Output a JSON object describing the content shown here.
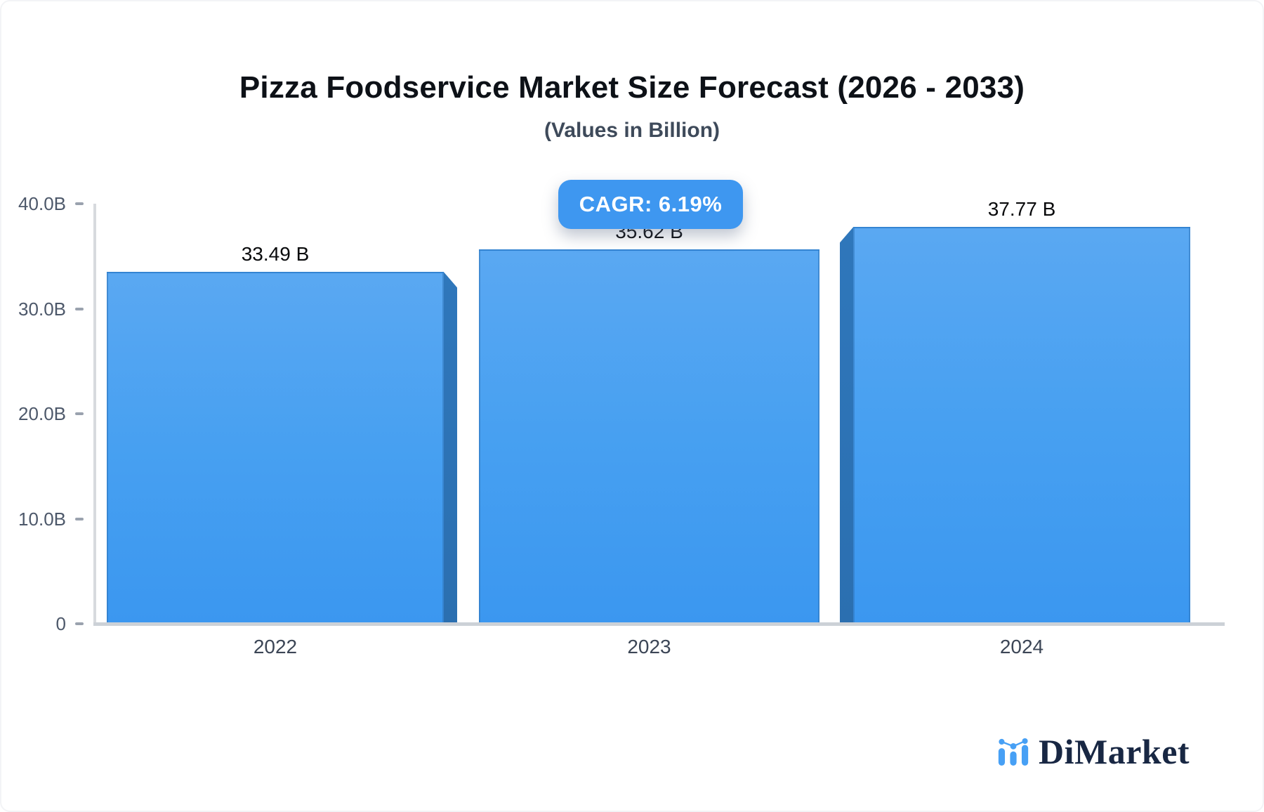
{
  "header": {
    "title": "Pizza Foodservice Market Size Forecast (2026 - 2033)",
    "subtitle": "(Values in Billion)"
  },
  "badge": {
    "label": "CAGR: 6.19%",
    "color": "#3e97f0",
    "text_color": "#ffffff"
  },
  "chart_data": {
    "type": "bar",
    "categories": [
      "2022",
      "2023",
      "2024"
    ],
    "values": [
      33.49,
      35.62,
      37.77
    ],
    "value_labels": [
      "33.49 B",
      "35.62 B",
      "37.77 B"
    ],
    "title": "Pizza Foodservice Market Size Forecast (2026 - 2033)",
    "subtitle": "(Values in Billion)",
    "xlabel": "",
    "ylabel": "",
    "ylim": [
      0,
      40
    ],
    "yticks": [
      {
        "value": 40,
        "label": "40.0B"
      },
      {
        "value": 30,
        "label": "30.0B"
      },
      {
        "value": 20,
        "label": "20.0B"
      },
      {
        "value": 10,
        "label": "10.0B"
      },
      {
        "value": 0,
        "label": "0"
      }
    ],
    "grid": false,
    "legend": false,
    "annotations": [
      "CAGR: 6.19%"
    ],
    "colors": {
      "bar_top": "#5aa8f2",
      "bar_bottom": "#3b97f0",
      "bar_side": "#2e74b8",
      "axis_line": "#d7dade",
      "baseline": "#ccd1d7",
      "tick_label": "#4d586a",
      "x_label": "#3c4656",
      "value_label": "#090a0c"
    }
  },
  "footer": {
    "logo_text": "DiMarket",
    "logo_text_color": "#182743",
    "logo_icon_color": "#47a0f5"
  }
}
